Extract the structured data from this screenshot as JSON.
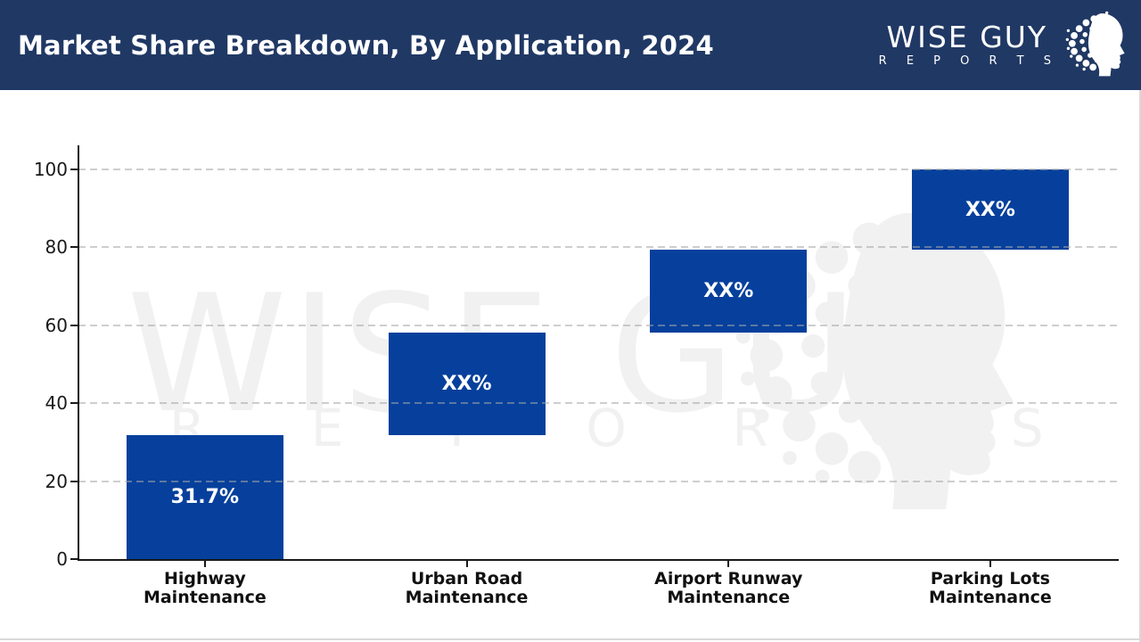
{
  "header": {
    "title": "Market Share Breakdown, By Application, 2024",
    "logo_line1": "WISE GUY",
    "logo_line2": "R E P O R T S"
  },
  "watermark": {
    "line1": "WISE GUY",
    "line2": "R E P O R T S"
  },
  "colors": {
    "header_bg": "#203864",
    "bar": "#06409c",
    "bar_label": "#ffffff",
    "axis": "#1a1a1a",
    "gridline": "#dddddd",
    "watermark": "#f1f1f1",
    "category_text": "#111111"
  },
  "chart_data": {
    "type": "bar",
    "subtype": "waterfall",
    "title": "Market Share Breakdown, By Application, 2024",
    "categories": [
      [
        "Highway",
        "Maintenance"
      ],
      [
        "Urban Road",
        "Maintenance"
      ],
      [
        "Airport Runway",
        "Maintenance"
      ],
      [
        "Parking Lots",
        "Maintenance"
      ]
    ],
    "segments": [
      {
        "label": "31.7%",
        "start": 0,
        "end": 31.7,
        "value": 31.7
      },
      {
        "label": "XX%",
        "start": 31.7,
        "end": 58.2,
        "value": 26.5
      },
      {
        "label": "XX%",
        "start": 58.2,
        "end": 79.4,
        "value": 21.2
      },
      {
        "label": "XX%",
        "start": 79.4,
        "end": 100,
        "value": 20.6
      }
    ],
    "y_ticks": [
      0,
      20,
      40,
      60,
      80,
      100
    ],
    "ylim": [
      0,
      100
    ],
    "xlabel": "",
    "ylabel": "",
    "grid": "horizontal-dashed",
    "legend": "none"
  }
}
